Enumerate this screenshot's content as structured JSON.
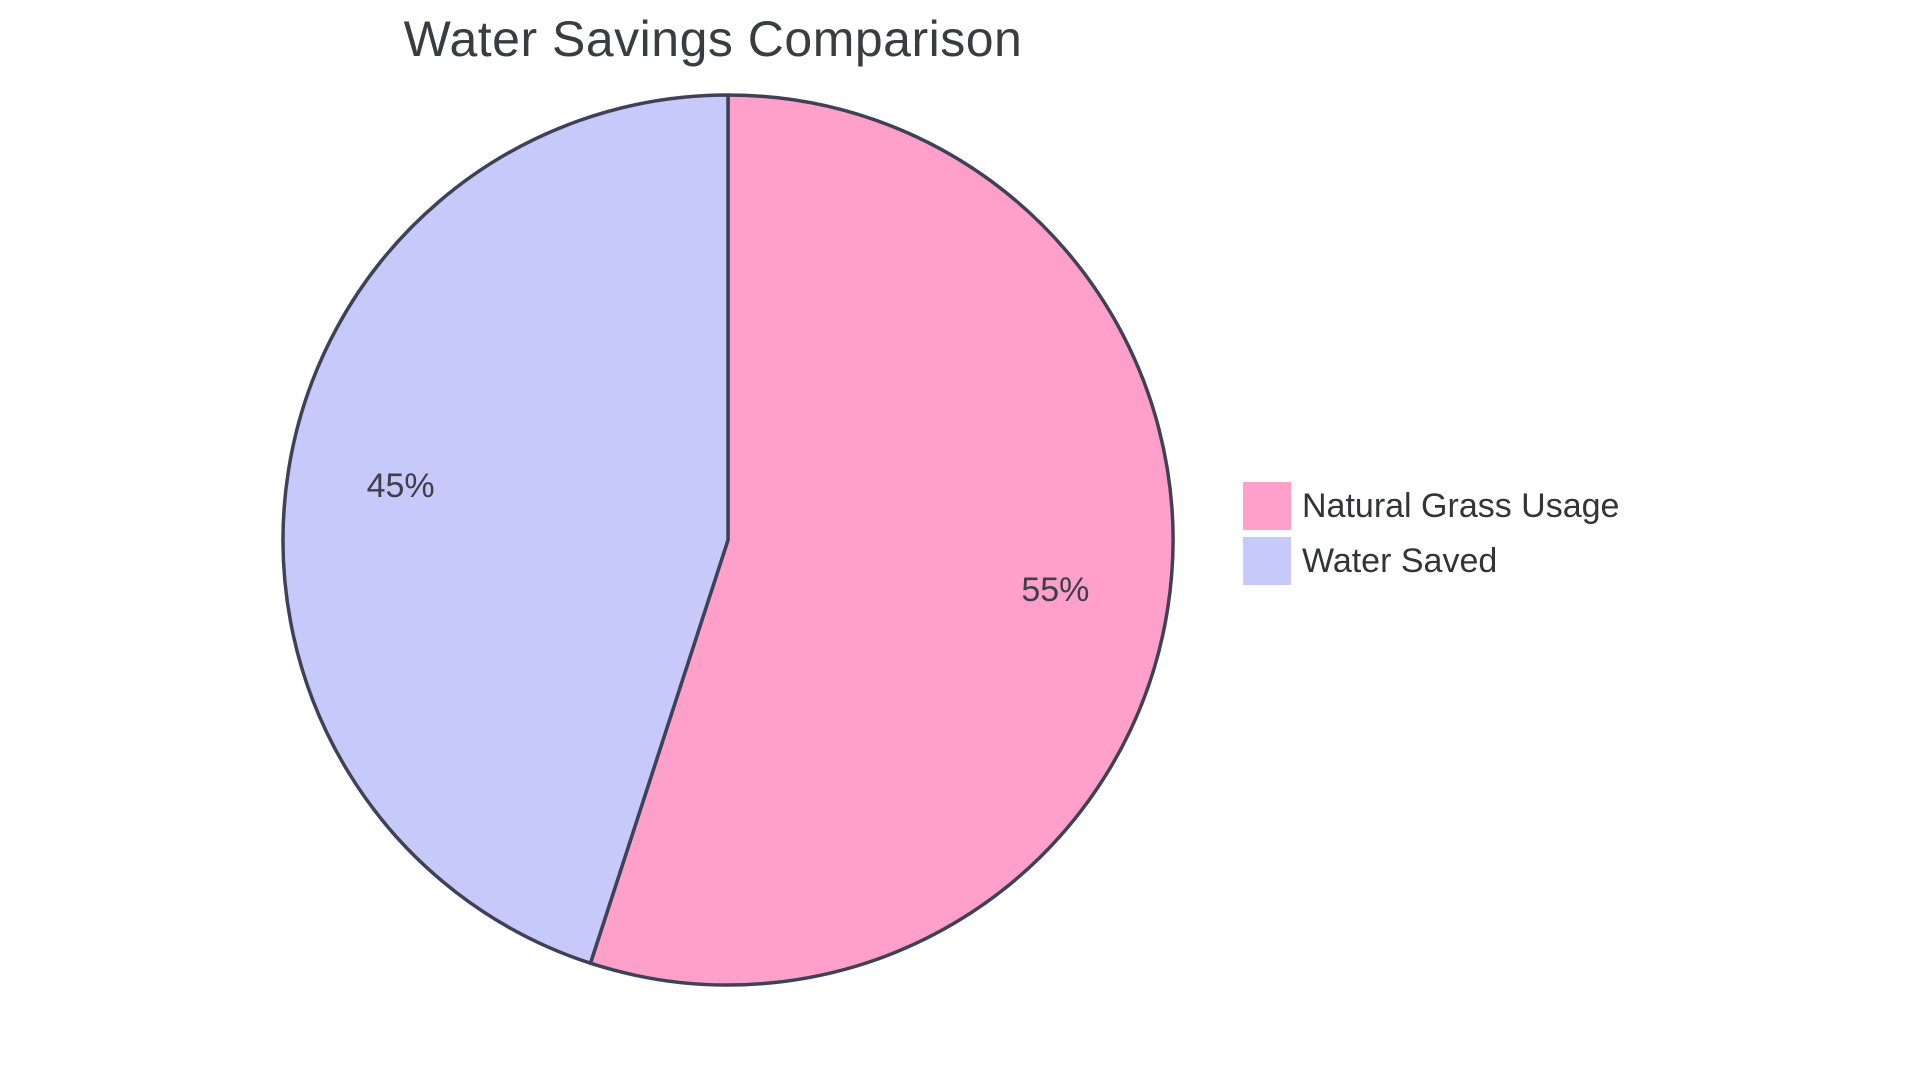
{
  "chart_data": {
    "type": "pie",
    "title": "Water Savings Comparison",
    "categories": [
      "Natural Grass Usage",
      "Water Saved"
    ],
    "values": [
      55,
      45
    ],
    "slices": [
      {
        "label": "Natural Grass Usage",
        "value": 55,
        "percent_label": "55%",
        "color": "#FFA0CB"
      },
      {
        "label": "Water Saved",
        "value": 45,
        "percent_label": "45%",
        "color": "#C7C9FA"
      }
    ],
    "start_angle_deg": -90,
    "direction": "clockwise",
    "legend_position": "right",
    "stroke_color": "#3F4256",
    "stroke_width": 3.5,
    "title_color": "#3B3C42",
    "label_color": "#3E3F4A",
    "legend_text_color": "#33343A",
    "background_color": "#FFFFFF"
  }
}
